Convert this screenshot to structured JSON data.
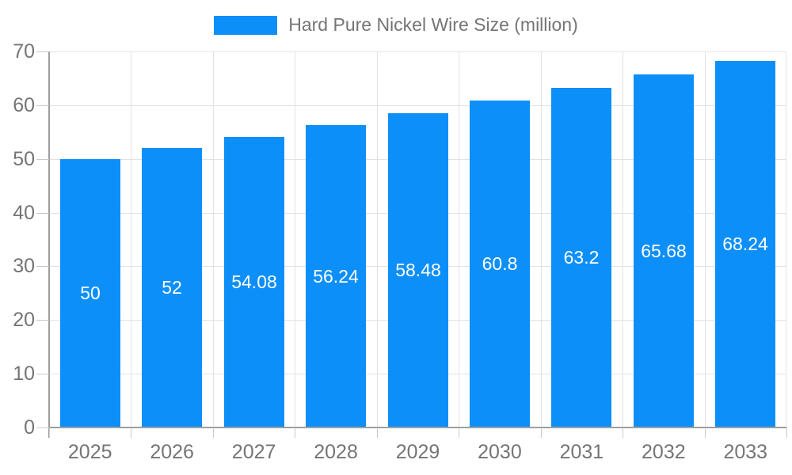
{
  "chart_data": {
    "type": "bar",
    "title": "Hard Pure Nickel Wire Size (million)",
    "categories": [
      "2025",
      "2026",
      "2027",
      "2028",
      "2029",
      "2030",
      "2031",
      "2032",
      "2033"
    ],
    "series": [
      {
        "name": "Hard Pure Nickel Wire Size (million)",
        "color": "#0d8ff9",
        "values": [
          50,
          52,
          54.08,
          56.24,
          58.48,
          60.8,
          63.2,
          65.68,
          68.24
        ]
      }
    ],
    "value_labels": [
      "50",
      "52",
      "54.08",
      "56.24",
      "58.48",
      "60.8",
      "63.2",
      "65.68",
      "68.24"
    ],
    "xlabel": "",
    "ylabel": "",
    "ylim": [
      0,
      70
    ],
    "yticks": [
      0,
      10,
      20,
      30,
      40,
      50,
      60,
      70
    ],
    "grid": true,
    "legend_position": "top",
    "value_label_position": "center",
    "colors": {
      "bar": "#0d8ff9",
      "axis_text": "#757575",
      "grid_line": "#e2e2e2",
      "axis_line": "#9e9e9e",
      "tick": "#c9c9c9",
      "value_label": "#ffffff",
      "background": "#ffffff"
    }
  }
}
